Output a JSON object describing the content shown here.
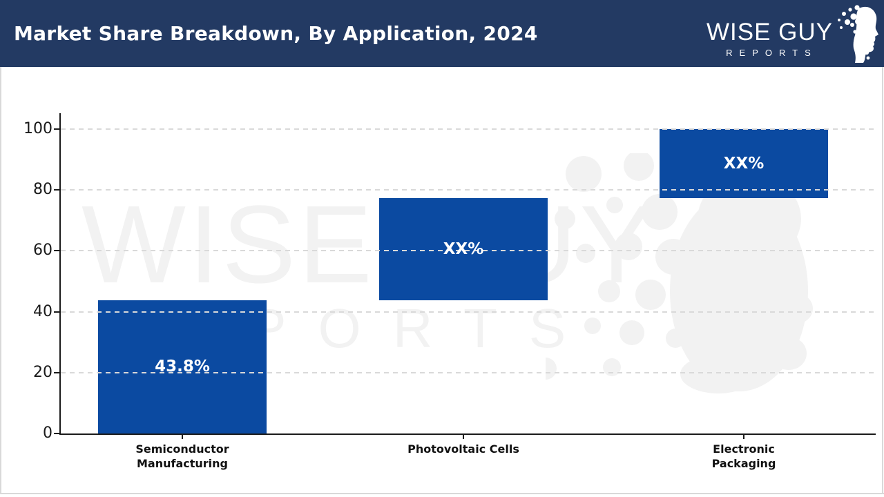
{
  "header": {
    "title": "Market Share Breakdown, By Application, 2024",
    "logo": {
      "wordmark": "WISE GUY",
      "subtext": "REPORTS"
    }
  },
  "watermark": {
    "wordmark": "WISE GUY",
    "subtext": "REPORTS"
  },
  "colors": {
    "header_bg": "#233a63",
    "bar": "#0b4aa1",
    "bar_label": "#ffffff",
    "grid": "#d9d9d9",
    "axis": "#1a1a1a",
    "watermark": "#f2f2f2"
  },
  "chart_data": {
    "type": "bar",
    "subtype": "waterfall-cumulative",
    "title": "Market Share Breakdown, By Application, 2024",
    "categories": [
      "Semiconductor Manufacturing",
      "Photovoltaic Cells",
      "Electronic Packaging"
    ],
    "category_lines": [
      [
        "Semiconductor",
        "Manufacturing"
      ],
      [
        "Photovoltaic Cells"
      ],
      [
        "Electronic",
        "Packaging"
      ]
    ],
    "series": [
      {
        "name": "Market share (%)",
        "segments": [
          {
            "category": "Semiconductor Manufacturing",
            "start": 0,
            "end": 43.8,
            "label": "43.8%"
          },
          {
            "category": "Photovoltaic Cells",
            "start": 43.8,
            "end": 77.3,
            "label": "XX%"
          },
          {
            "category": "Electronic Packaging",
            "start": 77.3,
            "end": 100,
            "label": "XX%"
          }
        ]
      }
    ],
    "ylim": [
      0,
      100
    ],
    "yticks": [
      0,
      20,
      40,
      60,
      80,
      100
    ],
    "xlabel": "",
    "ylabel": "",
    "grid": "horizontal-dashed",
    "legend": "none"
  }
}
